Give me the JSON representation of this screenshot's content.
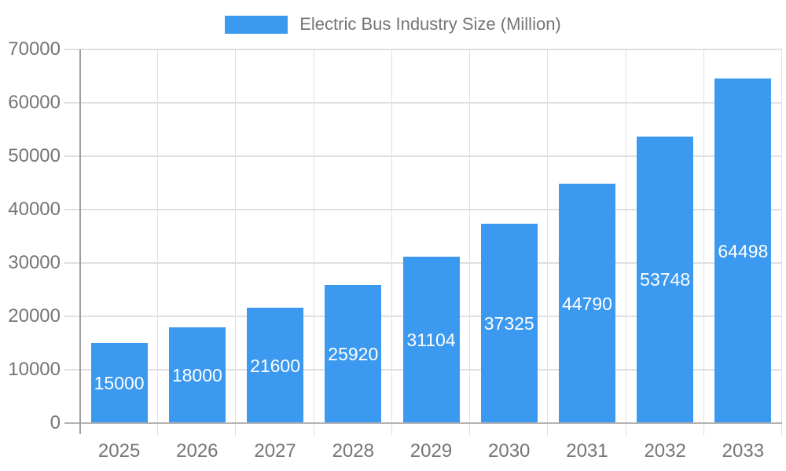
{
  "legend": {
    "label": "Electric Bus Industry Size (Million)"
  },
  "chart_data": {
    "type": "bar",
    "title": "Electric Bus Industry Size (Million)",
    "categories": [
      "2025",
      "2026",
      "2027",
      "2028",
      "2029",
      "2030",
      "2031",
      "2032",
      "2033"
    ],
    "series": [
      {
        "name": "Electric Bus Industry Size (Million)",
        "color": "#3B99EF",
        "values": [
          15000,
          18000,
          21600,
          25920,
          31104,
          37325,
          44790,
          53748,
          64498
        ]
      }
    ],
    "xlabel": "",
    "ylabel": "",
    "ylim": [
      0,
      70000
    ],
    "yticks": [
      0,
      10000,
      20000,
      30000,
      40000,
      50000,
      60000,
      70000
    ],
    "grid": true,
    "legend_position": "top",
    "value_labels": "inside-center"
  },
  "colors": {
    "bar": "#3B99EF",
    "gridline": "#e0e0e0",
    "baseline": "#b3b3b3",
    "axis_line": "#9e9e9e",
    "tick_text": "#757575",
    "legend_text": "#757575",
    "value_text": "#ffffff",
    "background": "#ffffff"
  }
}
